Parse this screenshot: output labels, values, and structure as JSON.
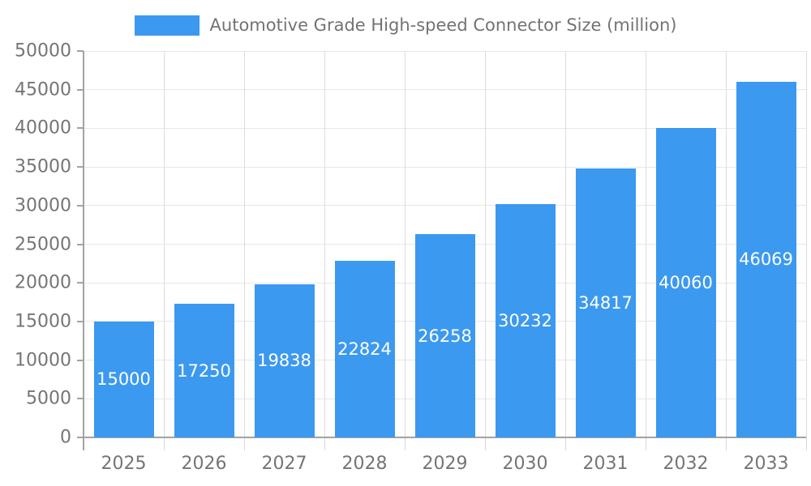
{
  "chart_data": {
    "type": "bar",
    "title": "Automotive Grade High-speed Connector Size (million)",
    "legend": [
      "Automotive Grade High-speed Connector Size (million)"
    ],
    "legend_position": "top-center",
    "categories": [
      "2025",
      "2026",
      "2027",
      "2028",
      "2029",
      "2030",
      "2031",
      "2032",
      "2033"
    ],
    "values": [
      15000,
      17250,
      19838,
      22824,
      26258,
      30232,
      34817,
      40060,
      46069
    ],
    "value_labels_visible": true,
    "value_label_position": "inside-middle",
    "xlabel": "",
    "ylabel": "",
    "ylim": [
      0,
      50000
    ],
    "ytick_step": 5000,
    "ytick_labels": [
      "0",
      "5000",
      "10000",
      "15000",
      "20000",
      "25000",
      "30000",
      "35000",
      "40000",
      "45000",
      "50000"
    ],
    "grid": true,
    "colors": {
      "bar": "#3C99F0",
      "value_label_text": "#FFFFFF",
      "axis_text": "#757575",
      "legend_text": "#737373",
      "axis_line": "#A3A3A3",
      "gridline_h": "#E7E7E7",
      "gridline_v": "#DDDDDD",
      "boundary_tick": "#D8D8D8",
      "background": "#FFFFFF"
    }
  }
}
